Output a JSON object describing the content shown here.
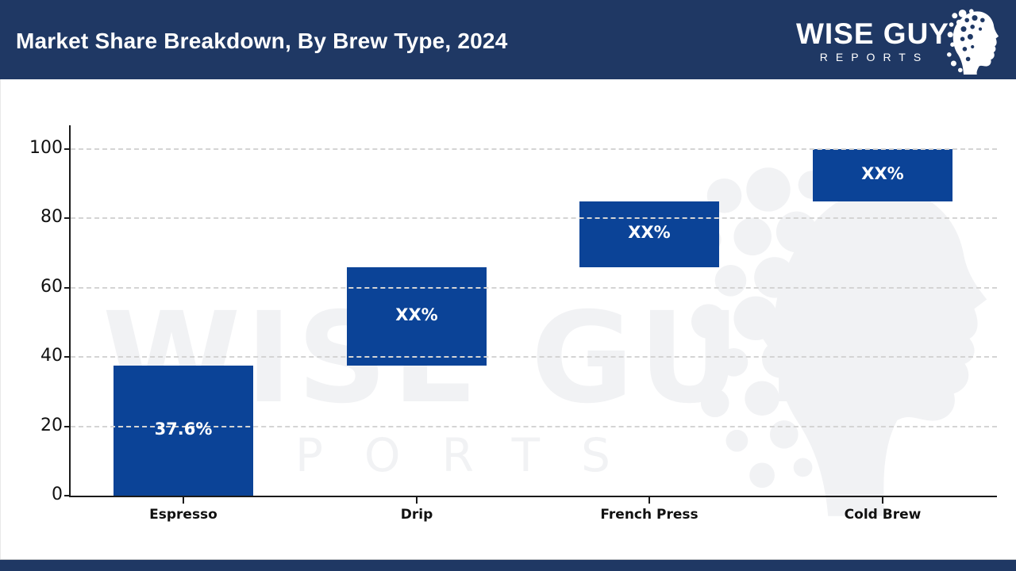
{
  "header": {
    "title": "Market Share Breakdown, By Brew Type, 2024",
    "logo": {
      "line1": "WISE GUY",
      "line2": "REPORTS"
    }
  },
  "watermark": {
    "line1": "WISE GUY",
    "line2": "REPORTS"
  },
  "chart_data": {
    "type": "bar",
    "subtype": "waterfall",
    "title": "Market Share Breakdown, By Brew Type, 2024",
    "categories": [
      "Espresso",
      "Drip",
      "French Press",
      "Cold Brew"
    ],
    "segments": [
      {
        "category": "Espresso",
        "start": 0,
        "end": 37.6,
        "label": "37.6%"
      },
      {
        "category": "Drip",
        "start": 37.6,
        "end": 66,
        "label": "XX%"
      },
      {
        "category": "French Press",
        "start": 66,
        "end": 85,
        "label": "XX%"
      },
      {
        "category": "Cold Brew",
        "start": 85,
        "end": 100,
        "label": "XX%"
      }
    ],
    "y_ticks": [
      0,
      20,
      40,
      60,
      80,
      100
    ],
    "ylim": [
      0,
      105
    ],
    "xlabel": "",
    "ylabel": "",
    "grid": "dashed-horizontal",
    "legend": "none",
    "bar_color": "#0b4397",
    "label_color": "#ffffff",
    "colors": {
      "header_bg": "#1f3864",
      "watermark": "#f1f2f4",
      "axis": "#1a1a1a",
      "gridline": "#d4d4d4"
    }
  }
}
